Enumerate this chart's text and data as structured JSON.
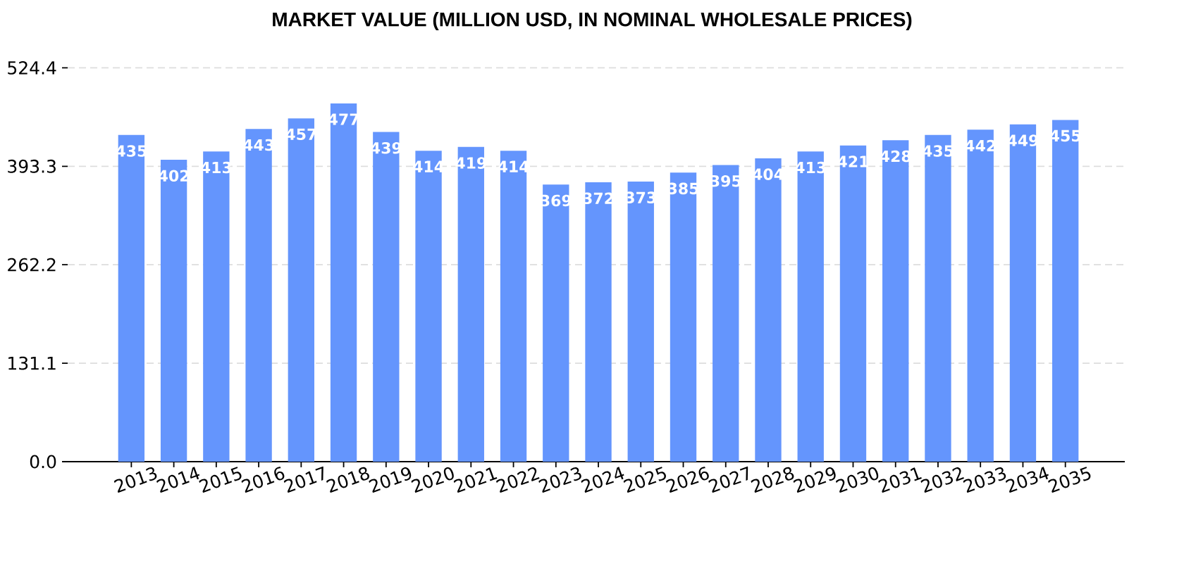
{
  "chart_data": {
    "type": "bar",
    "title": "MARKET VALUE (MILLION USD, IN NOMINAL WHOLESALE PRICES)",
    "categories": [
      "2013",
      "2014",
      "2015",
      "2016",
      "2017",
      "2018",
      "2019",
      "2020",
      "2021",
      "2022",
      "2023",
      "2024",
      "2025",
      "2026",
      "2027",
      "2028",
      "2029",
      "2030",
      "2031",
      "2032",
      "2033",
      "2034",
      "2035"
    ],
    "values": [
      435,
      402,
      413,
      443,
      457,
      477,
      439,
      414,
      419,
      414,
      369,
      372,
      373,
      385,
      395,
      404,
      413,
      421,
      428,
      435,
      442,
      449,
      455
    ],
    "color": "#6495fd",
    "ylim": [
      0,
      524.4
    ],
    "yticks": [
      {
        "value": 0,
        "label": "0.0"
      },
      131.1,
      262.2,
      393.3,
      524.4
    ],
    "grid": "y",
    "data_labels": true
  }
}
